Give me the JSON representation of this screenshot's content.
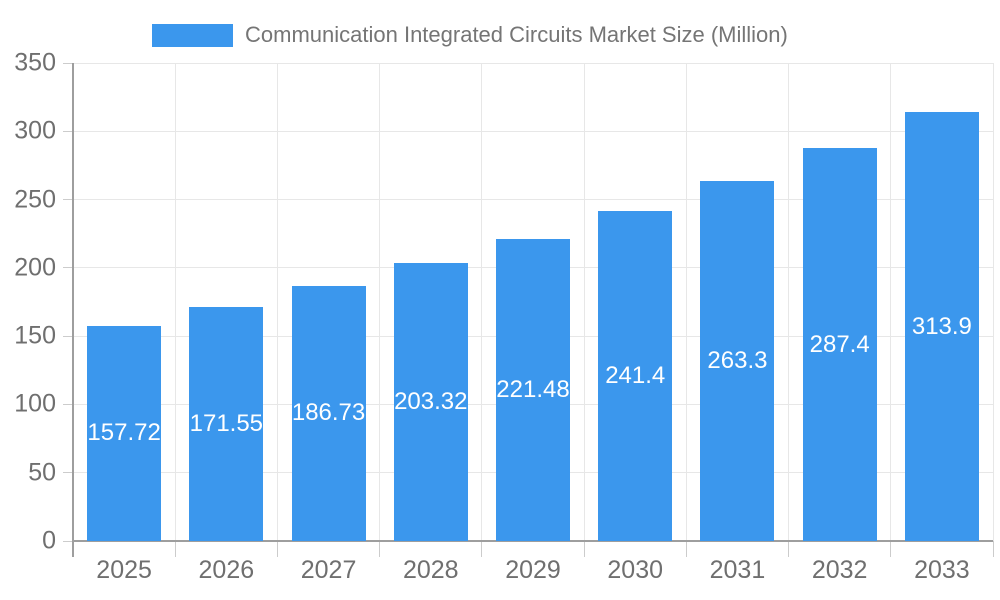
{
  "colors": {
    "bar": "#3B97ED",
    "grid": "#e7e7e7",
    "tick": "#cccccc",
    "axis": "#9e9e9e",
    "axis_label": "#6f6f6f",
    "legend_text": "#757575",
    "bar_label": "#ffffff",
    "background": "#ffffff"
  },
  "legend": {
    "label": "Communication Integrated Circuits Market Size (Million)"
  },
  "chart_data": {
    "type": "bar",
    "title": "Communication Integrated Circuits Market Size (Million)",
    "series_name": "Communication Integrated Circuits Market Size (Million)",
    "categories": [
      "2025",
      "2026",
      "2027",
      "2028",
      "2029",
      "2030",
      "2031",
      "2032",
      "2033"
    ],
    "values": [
      157.72,
      171.55,
      186.73,
      203.32,
      221.48,
      241.4,
      263.3,
      287.4,
      313.9
    ],
    "display_values": [
      "157.72",
      "171.55",
      "186.73",
      "203.32",
      "221.48",
      "241.4",
      "263.3",
      "287.4",
      "313.9"
    ],
    "xlabel": "",
    "ylabel": "",
    "ylim": [
      0,
      350
    ],
    "yticks": [
      0,
      50,
      100,
      150,
      200,
      250,
      300,
      350
    ],
    "grid": true,
    "legend_position": "top",
    "value_labels": "inside-center",
    "value_label_color": "#ffffff"
  }
}
